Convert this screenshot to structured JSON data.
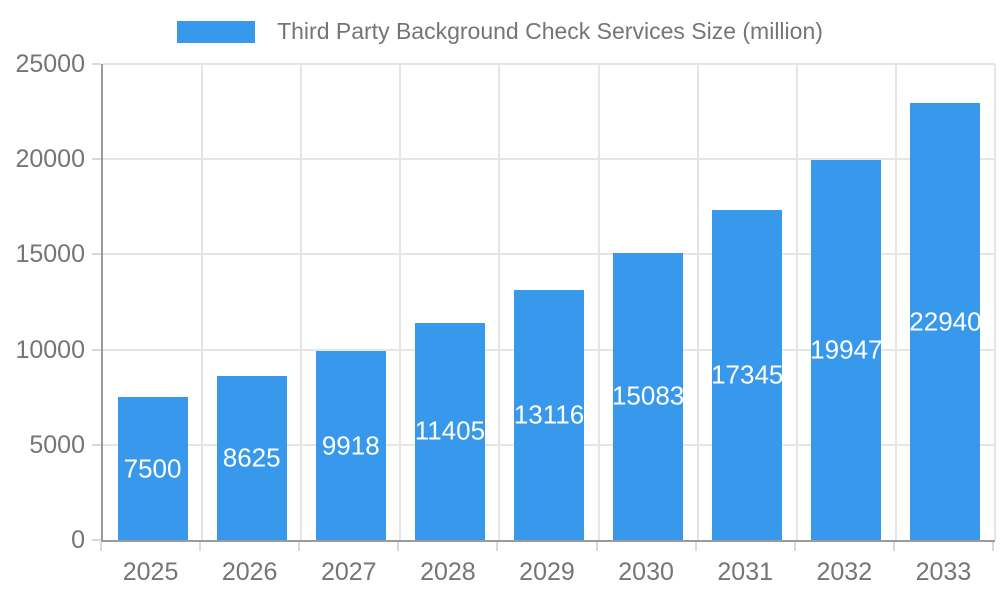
{
  "legend": {
    "label": "Third Party Background Check Services Size (million)"
  },
  "chart_data": {
    "type": "bar",
    "title": "Third Party Background Check Services Size (million)",
    "series_name": "Third Party Background Check Services Size (million)",
    "categories": [
      "2025",
      "2026",
      "2027",
      "2028",
      "2029",
      "2030",
      "2031",
      "2032",
      "2033"
    ],
    "values": [
      7500,
      8625,
      9918,
      11405,
      13116,
      15083,
      17345,
      19947,
      22940
    ],
    "xlabel": "",
    "ylabel": "",
    "ylim": [
      0,
      25000
    ],
    "yticks": [
      0,
      5000,
      10000,
      15000,
      20000,
      25000
    ],
    "grid": true,
    "legend_position": "top",
    "value_labels": "inside-middle",
    "colors": {
      "bar": "#3899EC",
      "value_label": "#ffffff",
      "axis_line": "#9b9b9b",
      "grid_line": "#e5e5e5",
      "tick_text": "#757575",
      "legend_text": "#757575",
      "background": "#ffffff"
    }
  }
}
